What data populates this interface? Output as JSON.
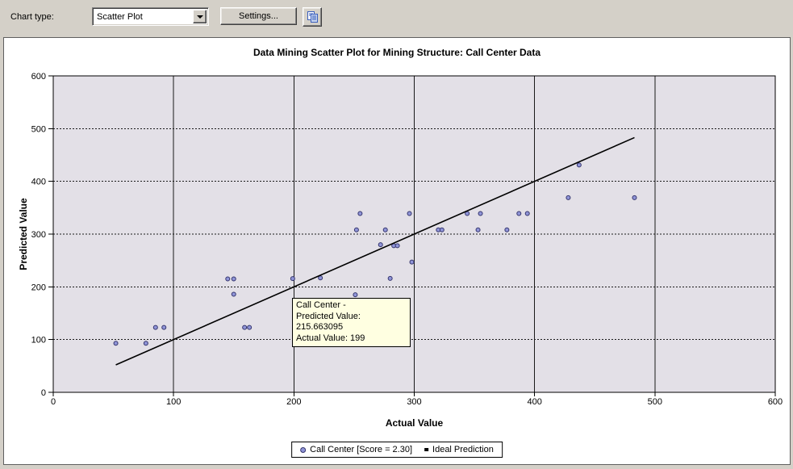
{
  "toolbar": {
    "chart_type_label": "Chart type:",
    "chart_type_value": "Scatter Plot",
    "settings_button_label": "Settings..."
  },
  "chart_data": {
    "type": "scatter",
    "title": "Data Mining Scatter Plot for Mining Structure: Call Center Data",
    "xlabel": "Actual Value",
    "ylabel": "Predicted Value",
    "xlim": [
      0,
      600
    ],
    "ylim": [
      0,
      600
    ],
    "x_ticks": [
      0,
      100,
      200,
      300,
      400,
      500,
      600
    ],
    "y_ticks": [
      0,
      100,
      200,
      300,
      400,
      500,
      600
    ],
    "grid": {
      "vertical": "solid",
      "horizontal": "dashed"
    },
    "plot_bg": "#e3e0e7",
    "legend_position": "bottom-center",
    "series": [
      {
        "name": "Call Center [Score = 2.30]",
        "type": "scatter",
        "marker": "circle",
        "marker_fill": "#9095d8",
        "marker_stroke": "#34346c",
        "points": [
          [
            52,
            93
          ],
          [
            77,
            93
          ],
          [
            85,
            123
          ],
          [
            92,
            123
          ],
          [
            145,
            215
          ],
          [
            150,
            215
          ],
          [
            150,
            186
          ],
          [
            159,
            123
          ],
          [
            163,
            123
          ],
          [
            199,
            215.663095
          ],
          [
            222,
            217
          ],
          [
            251,
            185
          ],
          [
            252,
            308
          ],
          [
            255,
            339
          ],
          [
            272,
            280
          ],
          [
            276,
            308
          ],
          [
            280,
            216
          ],
          [
            283,
            278
          ],
          [
            286,
            278
          ],
          [
            296,
            339
          ],
          [
            298,
            247
          ],
          [
            320,
            308
          ],
          [
            323,
            308
          ],
          [
            344,
            339
          ],
          [
            353,
            308
          ],
          [
            355,
            339
          ],
          [
            377,
            308
          ],
          [
            387,
            339
          ],
          [
            394,
            339
          ],
          [
            428,
            369
          ],
          [
            437,
            431
          ],
          [
            483,
            369
          ]
        ]
      },
      {
        "name": "Ideal Prediction",
        "type": "line",
        "color": "#000000",
        "points": [
          [
            52,
            52
          ],
          [
            483,
            483
          ]
        ]
      }
    ]
  },
  "tooltip": {
    "lines": [
      "Call Center -",
      "Predicted Value: 215.663095",
      "Actual Value: 199"
    ],
    "bg": "#ffffe1"
  },
  "colors": {
    "chrome": "#d4d0c8",
    "panel_bg": "#ffffff",
    "plot_bg": "#e3e0e7",
    "point_fill": "#9095d8",
    "point_stroke": "#34346c",
    "ideal_line": "#000000",
    "tooltip_bg": "#ffffe1"
  }
}
